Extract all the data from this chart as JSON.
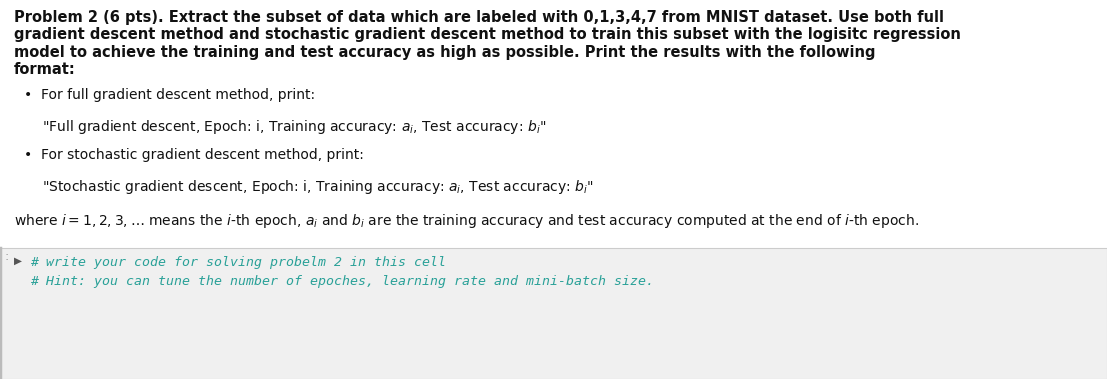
{
  "title_line1": "Problem 2 (6 pts). Extract the subset of data which are labeled with 0,1,3,4,7 from MNIST dataset. Use both full",
  "title_line2": "gradient descent method and stochastic gradient descent method to train this subset with the logisitc regression",
  "title_line3": "model to achieve the training and test accuracy as high as possible. Print the results with the following",
  "title_line4": "format:",
  "bullet1_label": "•  For full gradient descent method, print:",
  "bullet1_quote_pre": "\"Full gradient descent, Epoch: i, Training accuracy: ",
  "bullet1_mid": ", Test accuracy: ",
  "bullet1_post": "\"",
  "bullet2_label": "•  For stochastic gradient descent method, print:",
  "bullet2_quote_pre": "\"Stochastic gradient descent, Epoch: i, Training accuracy: ",
  "bullet2_mid": ", Test accuracy: ",
  "bullet2_post": "\"",
  "footer_pre": "where ",
  "footer_mid1": " means the ",
  "footer_mid2": "-th epoch, ",
  "footer_mid3": " and ",
  "footer_mid4": " are the training accuracy and test accuracy computed at the end of ",
  "footer_post": "-th epoch.",
  "code_line1": "# write your code for solving probelm 2 in this cell",
  "code_line2": "# Hint: you can tune the number of epoches, learning rate and mini-batch size.",
  "bg_color": "#ffffff",
  "code_bg_color": "#f0f0f0",
  "code_text_color": "#2aa198",
  "text_color": "#111111",
  "title_fontsize": 10.5,
  "body_fontsize": 10.0,
  "code_fontsize": 9.5
}
